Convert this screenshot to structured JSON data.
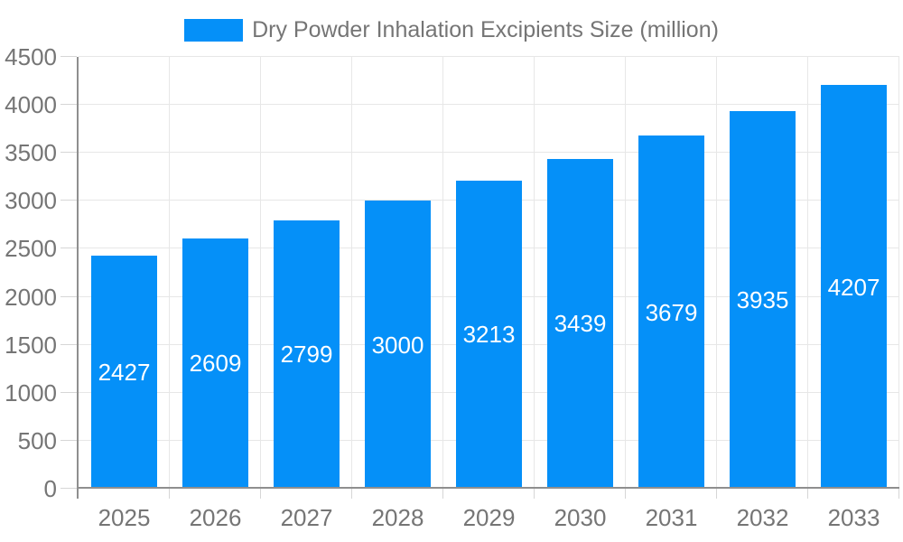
{
  "chart_data": {
    "type": "bar",
    "legend_label": "Dry Powder Inhalation Excipients Size (million)",
    "legend_position": "top",
    "categories": [
      "2025",
      "2026",
      "2027",
      "2028",
      "2029",
      "2030",
      "2031",
      "2032",
      "2033"
    ],
    "values": [
      2427,
      2609,
      2799,
      3000,
      3213,
      3439,
      3679,
      3935,
      4207
    ],
    "xlabel": "",
    "ylabel": "",
    "ylim": [
      0,
      4500
    ],
    "ytick_step": 500,
    "grid": true,
    "bar_value_labels_inside": true,
    "colors": {
      "bar": "#0590f8",
      "grid": "#e7e7e7",
      "tick": "#d6d6d6",
      "axis": "#8f8f8f",
      "label": "#757575",
      "bar_label": "#ffffff",
      "background": "#ffffff"
    }
  }
}
